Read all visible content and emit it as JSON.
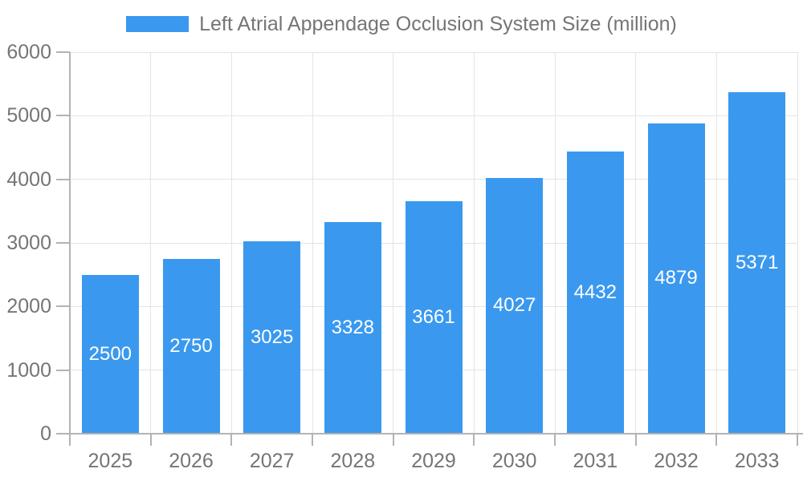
{
  "legend": {
    "label": "Left Atrial Appendage Occlusion System Size (million)"
  },
  "colors": {
    "bar": "#3A99EE",
    "bar_label": "#FFFFFF",
    "axis_label": "#757575",
    "legend_label": "#757575",
    "grid": "#E4E4E4",
    "axis_line": "#B3B3B3",
    "background": "#FFFFFF"
  },
  "chart_data": {
    "type": "bar",
    "title": "Left Atrial Appendage Occlusion System Size (million)",
    "legend_entries": [
      "Left Atrial Appendage Occlusion System Size (million)"
    ],
    "legend_position": "top",
    "categories": [
      "2025",
      "2026",
      "2027",
      "2028",
      "2029",
      "2030",
      "2031",
      "2032",
      "2033"
    ],
    "series": [
      {
        "name": "Left Atrial Appendage Occlusion System Size (million)",
        "values": [
          2500,
          2750,
          3025,
          3328,
          3661,
          4027,
          4432,
          4879,
          5371
        ]
      }
    ],
    "data_labels_shown": true,
    "xlabel": "",
    "ylabel": "",
    "ylim": [
      0,
      6000
    ],
    "yticks": [
      0,
      1000,
      2000,
      3000,
      4000,
      5000,
      6000
    ],
    "grid": true
  }
}
